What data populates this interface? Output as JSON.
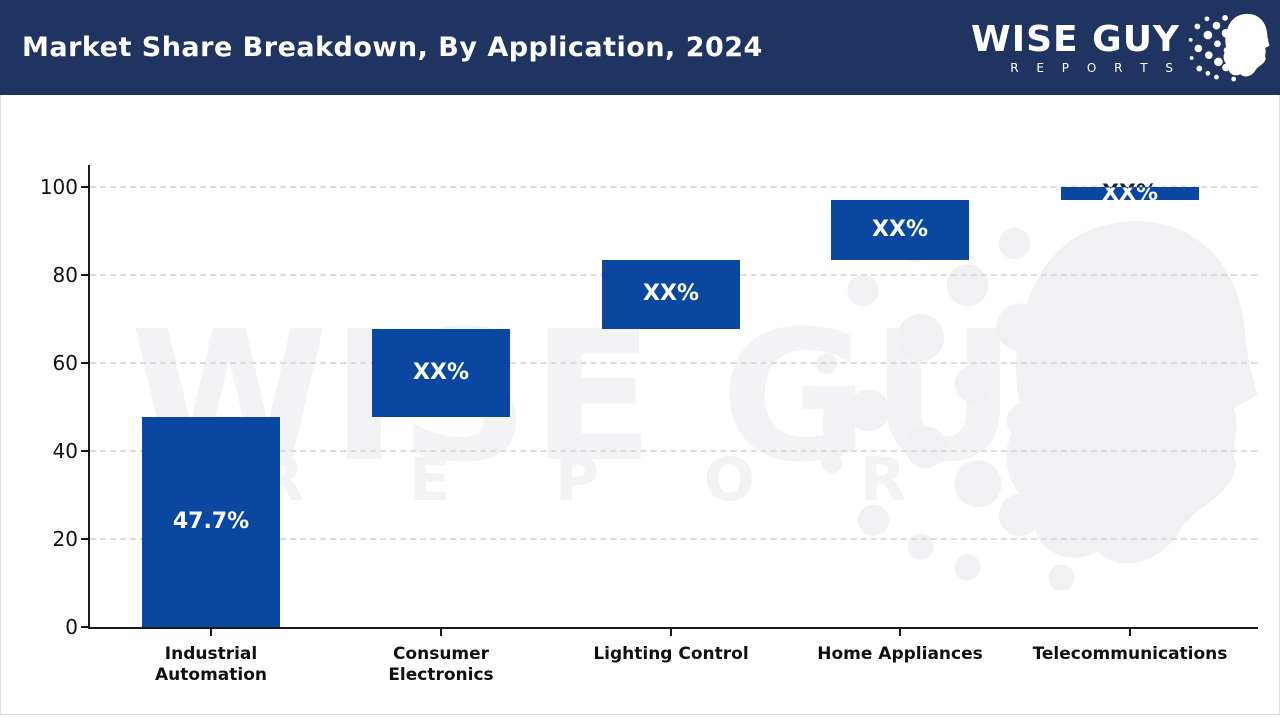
{
  "header": {
    "title": "Market Share Breakdown, By Application, 2024",
    "brand": {
      "line1": "WISE GUY",
      "line2": "R E P O R T S"
    }
  },
  "watermark": {
    "line1": "WISE GUY",
    "line2": "R E P O R T S"
  },
  "chart_data": {
    "type": "bar",
    "subtype": "waterfall",
    "title": "Market Share Breakdown, By Application, 2024",
    "categories": [
      "Industrial\nAutomation",
      "Consumer\nElectronics",
      "Lighting Control",
      "Home Appliances",
      "Telecommunications"
    ],
    "segments": [
      {
        "category": "Industrial Automation",
        "start": 0,
        "end": 47.7,
        "value": 47.7,
        "label": "47.7%"
      },
      {
        "category": "Consumer Electronics",
        "start": 47.7,
        "end": 67.7,
        "value": 20.0,
        "label": "XX%"
      },
      {
        "category": "Lighting Control",
        "start": 67.7,
        "end": 83.5,
        "value": 15.8,
        "label": "XX%"
      },
      {
        "category": "Home Appliances",
        "start": 83.5,
        "end": 97.0,
        "value": 13.5,
        "label": "XX%"
      },
      {
        "category": "Telecommunications",
        "start": 97.0,
        "end": 100.0,
        "value": 3.0,
        "label": "XX%"
      }
    ],
    "xlabel": "",
    "ylabel": "",
    "ylim": [
      0,
      100
    ],
    "yticks": [
      0,
      20,
      40,
      60,
      80,
      100
    ],
    "grid": "horizontal-dashed",
    "legend_position": "none",
    "bar_color": "#0a47a1",
    "bar_label_color": "#ffffff",
    "split_label_dark_color": "#17203d"
  }
}
